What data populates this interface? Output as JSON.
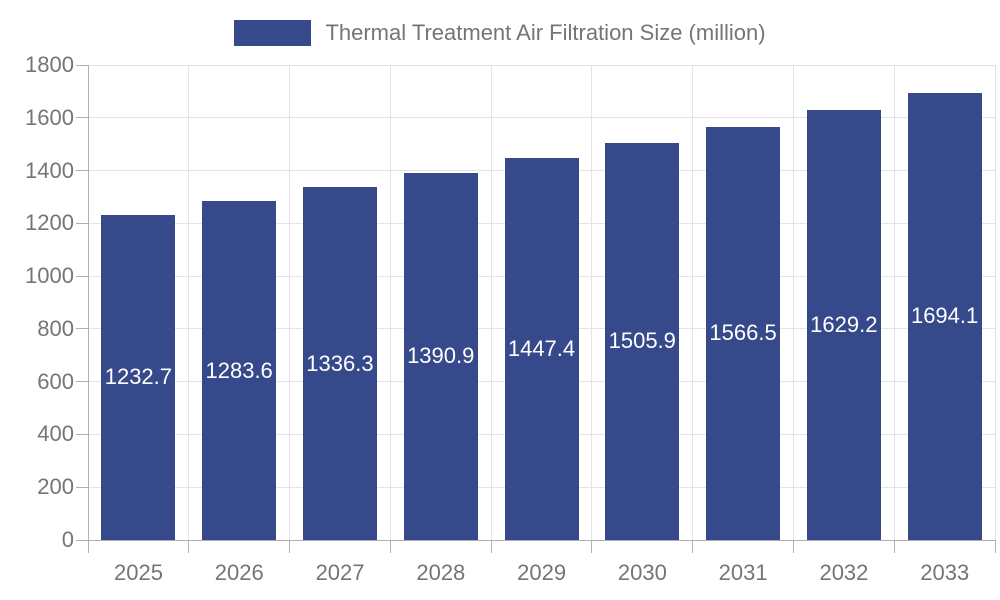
{
  "legend": {
    "label": "Thermal Treatment Air Filtration Size (million)",
    "swatch_color": "#36498B"
  },
  "chart_data": {
    "type": "bar",
    "title": "Thermal Treatment Air Filtration Size (million)",
    "series_name": "Thermal Treatment Air Filtration Size (million)",
    "categories": [
      "2025",
      "2026",
      "2027",
      "2028",
      "2029",
      "2030",
      "2031",
      "2032",
      "2033"
    ],
    "values": [
      1232.7,
      1283.6,
      1336.3,
      1390.9,
      1447.4,
      1505.9,
      1566.5,
      1629.2,
      1694.1
    ],
    "value_labels": [
      "1232.7",
      "1283.6",
      "1336.3",
      "1390.9",
      "1447.4",
      "1505.9",
      "1566.5",
      "1629.2",
      "1694.1"
    ],
    "xlabel": "",
    "ylabel": "",
    "ylim": [
      0,
      1800
    ],
    "y_ticks": [
      0,
      200,
      400,
      600,
      800,
      1000,
      1200,
      1400,
      1600,
      1800
    ],
    "grid": true,
    "legend_position": "top",
    "bar_color": "#36498B",
    "value_label_color": "#FFFFFF",
    "axis_text_color": "#757575",
    "grid_color": "#E3E3E8",
    "axis_line_color": "#B0B0B0",
    "background_color": "#FFFFFF"
  }
}
